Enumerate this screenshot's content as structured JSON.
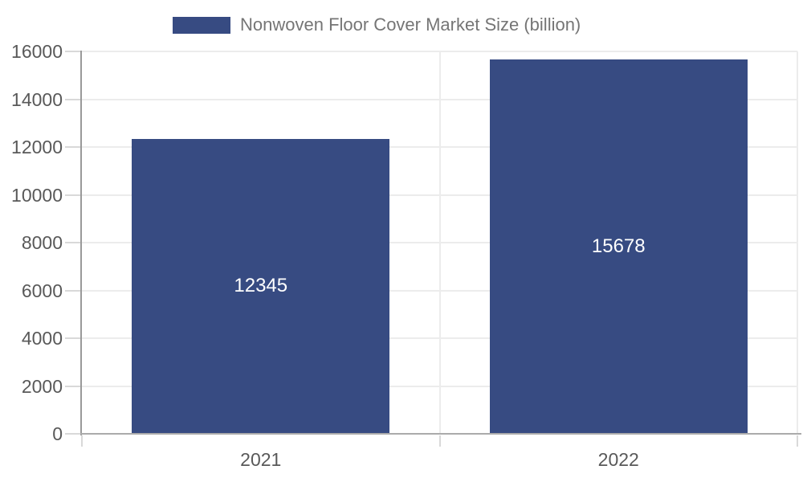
{
  "legend": {
    "label": "Nonwoven Floor Cover Market Size (billion)"
  },
  "colors": {
    "bar": "#374b82",
    "grid": "#ececec",
    "tick": "#d9d9d9",
    "axis_y": "#9a9a9a",
    "axis_x": "#ababab",
    "tick_label": "#595959",
    "legend_text": "#757575",
    "value_label": "#ffffff",
    "background": "#ffffff"
  },
  "chart_data": {
    "type": "bar",
    "title": "",
    "series_name": "Nonwoven Floor Cover Market Size (billion)",
    "categories": [
      "2021",
      "2022"
    ],
    "values": [
      12345,
      15678
    ],
    "value_labels": [
      "12345",
      "15678"
    ],
    "yticks": [
      0,
      2000,
      4000,
      6000,
      8000,
      10000,
      12000,
      14000,
      16000
    ],
    "ylim": [
      0,
      16000
    ],
    "xlabel": "",
    "ylabel": "",
    "grid": true,
    "legend_position": "top"
  }
}
